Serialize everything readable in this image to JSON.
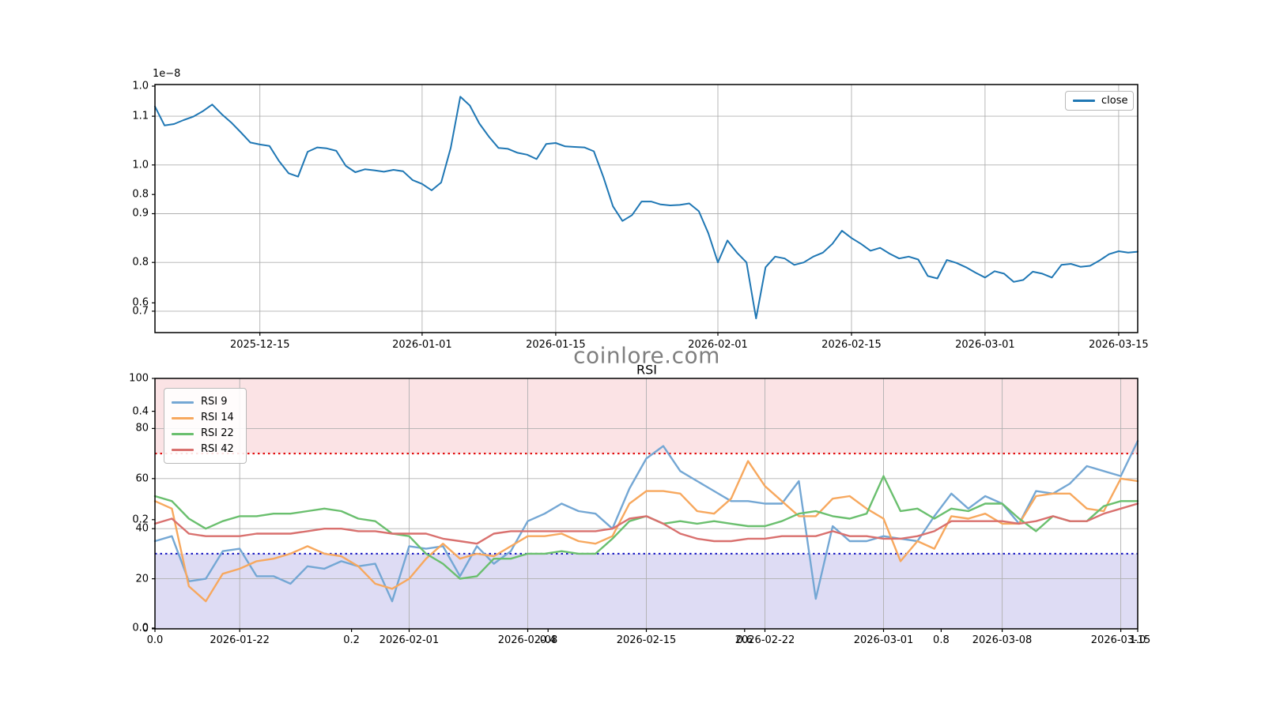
{
  "watermark": {
    "text": "coinlore.com",
    "color": "#7f7f7f"
  },
  "price_chart": {
    "y_offset_text": "1e−8",
    "y_tick_labels": [
      "1.1",
      "1.0",
      "0.9",
      "0.8",
      "0.7"
    ],
    "x_tick_labels": [
      "2025-12-15",
      "2026-01-01",
      "2026-01-15",
      "2026-02-01",
      "2026-02-15",
      "2026-03-01",
      "2026-03-15"
    ],
    "legend": [
      {
        "label": "close",
        "color": "#1f77b4"
      }
    ]
  },
  "rsi_chart": {
    "title": "RSI",
    "y_tick_labels": [
      "100",
      "80",
      "60",
      "40",
      "20",
      "0"
    ],
    "x_tick_labels": [
      "2026-01-22",
      "2026-02-01",
      "2026-02-08",
      "2026-02-15",
      "2026-02-22",
      "2026-03-01",
      "2026-03-08",
      "2026-03-15"
    ],
    "legend": [
      {
        "label": "RSI 9",
        "color": "#74a7d4"
      },
      {
        "label": "RSI 14",
        "color": "#f7a85e"
      },
      {
        "label": "RSI 22",
        "color": "#6abf6e"
      },
      {
        "label": "RSI 42",
        "color": "#d9706e"
      }
    ],
    "overbought_level": 70,
    "oversold_level": 30,
    "overbought_band_color": "#fbe3e5",
    "oversold_band_color": "#dedcf4",
    "overbought_line_color": "#e00000",
    "oversold_line_color": "#1212c0"
  },
  "overlay_axis": {
    "x_tick_labels": [
      "0.0",
      "0.2",
      "0.4",
      "0.6",
      "0.8",
      "1.0"
    ],
    "y_tick_labels": [
      "1.0",
      "0.8",
      "0.6",
      "0.4",
      "0.2",
      "0.0"
    ]
  },
  "style": {
    "grid_color": "#b0b0b0",
    "spine_color": "#000000",
    "background": "#ffffff"
  },
  "chart_data": [
    {
      "type": "line",
      "title": "",
      "xlabel": "",
      "ylabel": "",
      "y_scale": "1e-8",
      "x_start": "2025-12-04",
      "x_end": "2026-03-17",
      "ylim": [
        0.656,
        1.165
      ],
      "x_tick_labels": [
        "2025-12-15",
        "2026-01-01",
        "2026-01-15",
        "2026-02-01",
        "2026-02-15",
        "2026-03-01",
        "2026-03-15"
      ],
      "x_tick_indices": [
        11,
        28,
        42,
        59,
        73,
        87,
        101
      ],
      "y_ticks": [
        1.1,
        1.0,
        0.9,
        0.8,
        0.7
      ],
      "grid": true,
      "legend_position": "upper right",
      "series": [
        {
          "name": "close",
          "color": "#1f77b4",
          "width": 2,
          "values": [
            1.12,
            1.081,
            1.084,
            1.092,
            1.099,
            1.11,
            1.124,
            1.104,
            1.087,
            1.067,
            1.046,
            1.042,
            1.039,
            1.008,
            0.983,
            0.976,
            1.027,
            1.036,
            1.034,
            1.029,
            0.998,
            0.985,
            0.991,
            0.989,
            0.986,
            0.99,
            0.987,
            0.969,
            0.961,
            0.948,
            0.964,
            1.035,
            1.14,
            1.122,
            1.085,
            1.058,
            1.035,
            1.033,
            1.025,
            1.021,
            1.012,
            1.043,
            1.045,
            1.038,
            1.037,
            1.036,
            1.028,
            0.975,
            0.915,
            0.885,
            0.897,
            0.925,
            0.925,
            0.919,
            0.917,
            0.918,
            0.921,
            0.905,
            0.86,
            0.8,
            0.845,
            0.82,
            0.8,
            0.685,
            0.79,
            0.812,
            0.808,
            0.795,
            0.8,
            0.812,
            0.82,
            0.838,
            0.865,
            0.85,
            0.838,
            0.824,
            0.83,
            0.818,
            0.808,
            0.812,
            0.806,
            0.772,
            0.767,
            0.805,
            0.799,
            0.79,
            0.779,
            0.769,
            0.782,
            0.777,
            0.76,
            0.764,
            0.781,
            0.777,
            0.769,
            0.795,
            0.797,
            0.791,
            0.793,
            0.804,
            0.817,
            0.823,
            0.82,
            0.822
          ]
        }
      ]
    },
    {
      "type": "line",
      "title": "RSI",
      "xlabel": "",
      "ylabel": "",
      "x_start": "2026-01-17",
      "x_end": "2026-03-16",
      "ylim": [
        0,
        100
      ],
      "x_tick_labels": [
        "2026-01-22",
        "2026-02-01",
        "2026-02-08",
        "2026-02-15",
        "2026-02-22",
        "2026-03-01",
        "2026-03-08",
        "2026-03-15"
      ],
      "x_tick_indices": [
        5,
        15,
        22,
        29,
        36,
        43,
        50,
        57
      ],
      "y_ticks": [
        100,
        80,
        60,
        40,
        20,
        0
      ],
      "grid": true,
      "legend_position": "upper left",
      "thresholds": {
        "overbought": 70,
        "oversold": 30
      },
      "bands": [
        [
          70,
          100
        ],
        [
          0,
          30
        ]
      ],
      "series": [
        {
          "name": "RSI 9",
          "color": "#74a7d4",
          "width": 2.4,
          "values": [
            35,
            37,
            19,
            20,
            31,
            32,
            21,
            21,
            18,
            25,
            24,
            27,
            25,
            26,
            11,
            33,
            32,
            33,
            21,
            33,
            26,
            31,
            43,
            46,
            50,
            47,
            46,
            40,
            56,
            68,
            73,
            63,
            59,
            55,
            51,
            51,
            50,
            50,
            59,
            12,
            41,
            35,
            35,
            37,
            36,
            35,
            45,
            54,
            48,
            53,
            50,
            42,
            55,
            54,
            58,
            65,
            63,
            61,
            75
          ]
        },
        {
          "name": "RSI 14",
          "color": "#f7a85e",
          "width": 2.4,
          "values": [
            51,
            48,
            17,
            11,
            22,
            24,
            27,
            28,
            30,
            33,
            30,
            29,
            25,
            18,
            16,
            20,
            28,
            34,
            28,
            30,
            29,
            33,
            37,
            37,
            38,
            35,
            34,
            37,
            50,
            55,
            55,
            54,
            47,
            46,
            52,
            67,
            57,
            51,
            45,
            45,
            52,
            53,
            48,
            44,
            27,
            35,
            32,
            45,
            44,
            46,
            42,
            42,
            53,
            54,
            54,
            48,
            47,
            60,
            59
          ]
        },
        {
          "name": "RSI 22",
          "color": "#6abf6e",
          "width": 2.4,
          "values": [
            53,
            51,
            44,
            40,
            43,
            45,
            45,
            46,
            46,
            47,
            48,
            47,
            44,
            43,
            38,
            37,
            30,
            26,
            20,
            21,
            28,
            28,
            30,
            30,
            31,
            30,
            30,
            36,
            43,
            45,
            42,
            43,
            42,
            43,
            42,
            41,
            41,
            43,
            46,
            47,
            45,
            44,
            46,
            61,
            47,
            48,
            44,
            48,
            47,
            50,
            50,
            44,
            39,
            45,
            43,
            43,
            49,
            51,
            51
          ]
        },
        {
          "name": "RSI 42",
          "color": "#d9706e",
          "width": 2.4,
          "values": [
            42,
            44,
            38,
            37,
            37,
            37,
            38,
            38,
            38,
            39,
            40,
            40,
            39,
            39,
            38,
            38,
            38,
            36,
            35,
            34,
            38,
            39,
            39,
            39,
            39,
            39,
            39,
            40,
            44,
            45,
            42,
            38,
            36,
            35,
            35,
            36,
            36,
            37,
            37,
            37,
            39,
            37,
            37,
            36,
            36,
            37,
            39,
            43,
            43,
            43,
            43,
            42,
            43,
            45,
            43,
            43,
            46,
            48,
            50
          ]
        }
      ]
    },
    {
      "type": "overlay-axis",
      "note": "transparent full-span axes whose 0.0-1.0 tick labels overlap both subplots",
      "x_ticks": [
        0.0,
        0.2,
        0.4,
        0.6,
        0.8,
        1.0
      ],
      "y_ticks": [
        1.0,
        0.8,
        0.6,
        0.4,
        0.2,
        0.0
      ]
    }
  ]
}
